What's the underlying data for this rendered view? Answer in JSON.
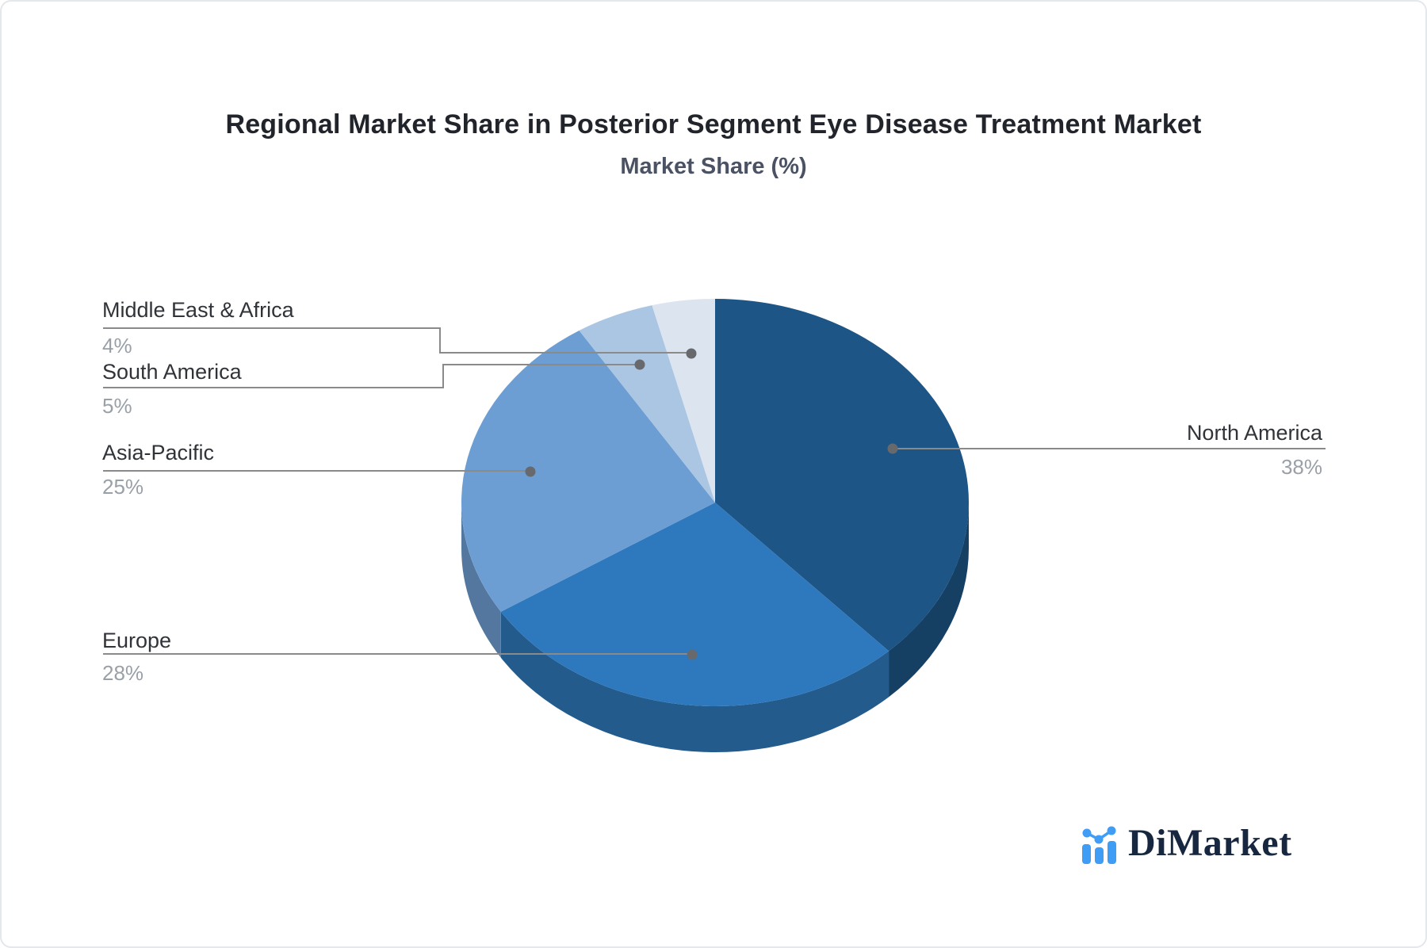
{
  "chart_data": {
    "type": "pie",
    "title": "Regional Market Share in Posterior Segment Eye Disease Treatment Market",
    "subtitle": "Market Share (%)",
    "unit": "%",
    "categories": [
      "North America",
      "Europe",
      "Asia-Pacific",
      "South America",
      "Middle East & Africa"
    ],
    "values": [
      38,
      28,
      25,
      5,
      4
    ],
    "start_angle_deg": -90,
    "clockwise": true,
    "effect_3d": true,
    "legend": false,
    "slices": [
      {
        "label": "North America",
        "value": 38,
        "pct_text": "38%",
        "color": "#1d5586",
        "side_color": "#153f63"
      },
      {
        "label": "Europe",
        "value": 28,
        "pct_text": "28%",
        "color": "#2e79be",
        "side_color": "#235b8d"
      },
      {
        "label": "Asia-Pacific",
        "value": 25,
        "pct_text": "25%",
        "color": "#6d9ed3",
        "side_color": "#53779e"
      },
      {
        "label": "South America",
        "value": 5,
        "pct_text": "5%",
        "color": "#aac6e3",
        "side_color": "#8096ab"
      },
      {
        "label": "Middle East & Africa",
        "value": 4,
        "pct_text": "4%",
        "color": "#dce4ef",
        "side_color": "#a6adb6"
      }
    ]
  },
  "callout": {
    "line_color": "#8a8a8a",
    "dot_color": "#68696c"
  },
  "logo": {
    "text": "DiMarket",
    "icon": "bar-line-chart-icon",
    "icon_color": "#3f9df5",
    "text_color": "#17273f"
  }
}
